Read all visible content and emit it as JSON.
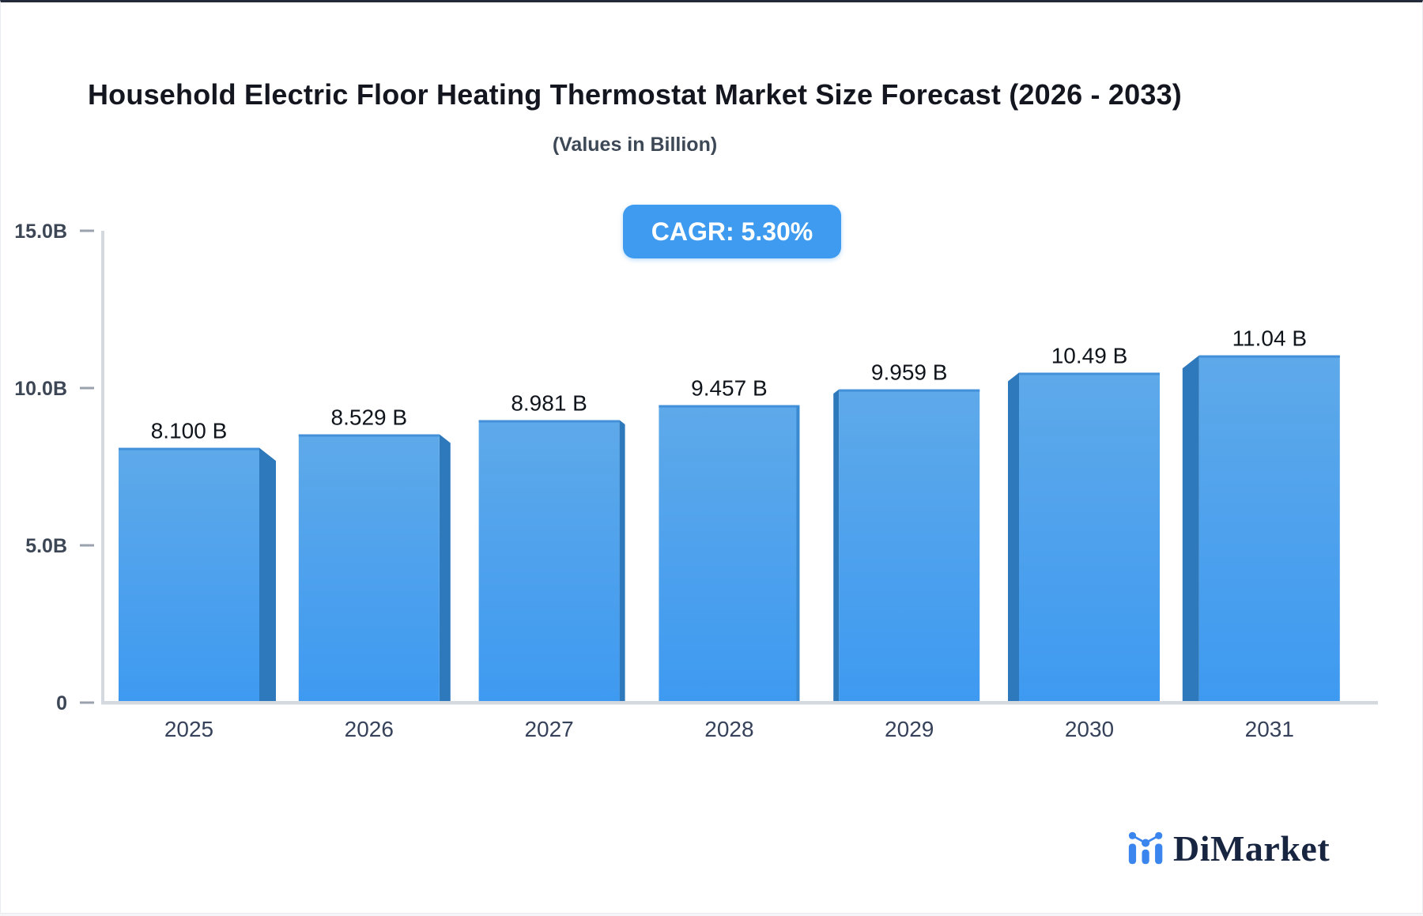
{
  "page": {
    "background": "#ffffff",
    "top_border": "#232b3a"
  },
  "chart_data": {
    "type": "bar",
    "title": "Household Electric Floor Heating Thermostat Market Size Forecast (2026 - 2033)",
    "subtitle": "(Values in Billion)",
    "cagr_label": "CAGR: 5.30%",
    "categories": [
      "2025",
      "2026",
      "2027",
      "2028",
      "2029",
      "2030",
      "2031"
    ],
    "values": [
      8.1,
      8.529,
      8.981,
      9.457,
      9.959,
      10.49,
      11.04
    ],
    "value_labels": [
      "8.100 B",
      "8.529 B",
      "8.981 B",
      "9.457 B",
      "9.959 B",
      "10.49 B",
      "11.04 B"
    ],
    "y_ticks": [
      {
        "value": 0,
        "label": "0"
      },
      {
        "value": 5,
        "label": "5.0B"
      },
      {
        "value": 10,
        "label": "10.0B"
      },
      {
        "value": 15,
        "label": "15.0B"
      }
    ],
    "ylim": [
      0,
      15
    ],
    "xlabel": "",
    "ylabel": "",
    "grid": false,
    "legend": false,
    "bar_3d": true,
    "style": {
      "badge_bg": "#3f9bef",
      "bar_fill_top": "#5ea9e9",
      "bar_fill_bottom": "#3e9af1",
      "bar_side": "#2e78bc",
      "bar_top_edge": "#4591d9",
      "bar_center_edge": "#3a8ad2",
      "axis_line": "#d4d8df",
      "tick_dash": "#9aa2ae",
      "tick_text": "#3c4655",
      "value_text": "#10151c",
      "x_label_text": "#36415a"
    }
  },
  "footer": {
    "brand": "DiMarket",
    "brand_color": "#182540",
    "icon_color": "#3b86ee"
  }
}
